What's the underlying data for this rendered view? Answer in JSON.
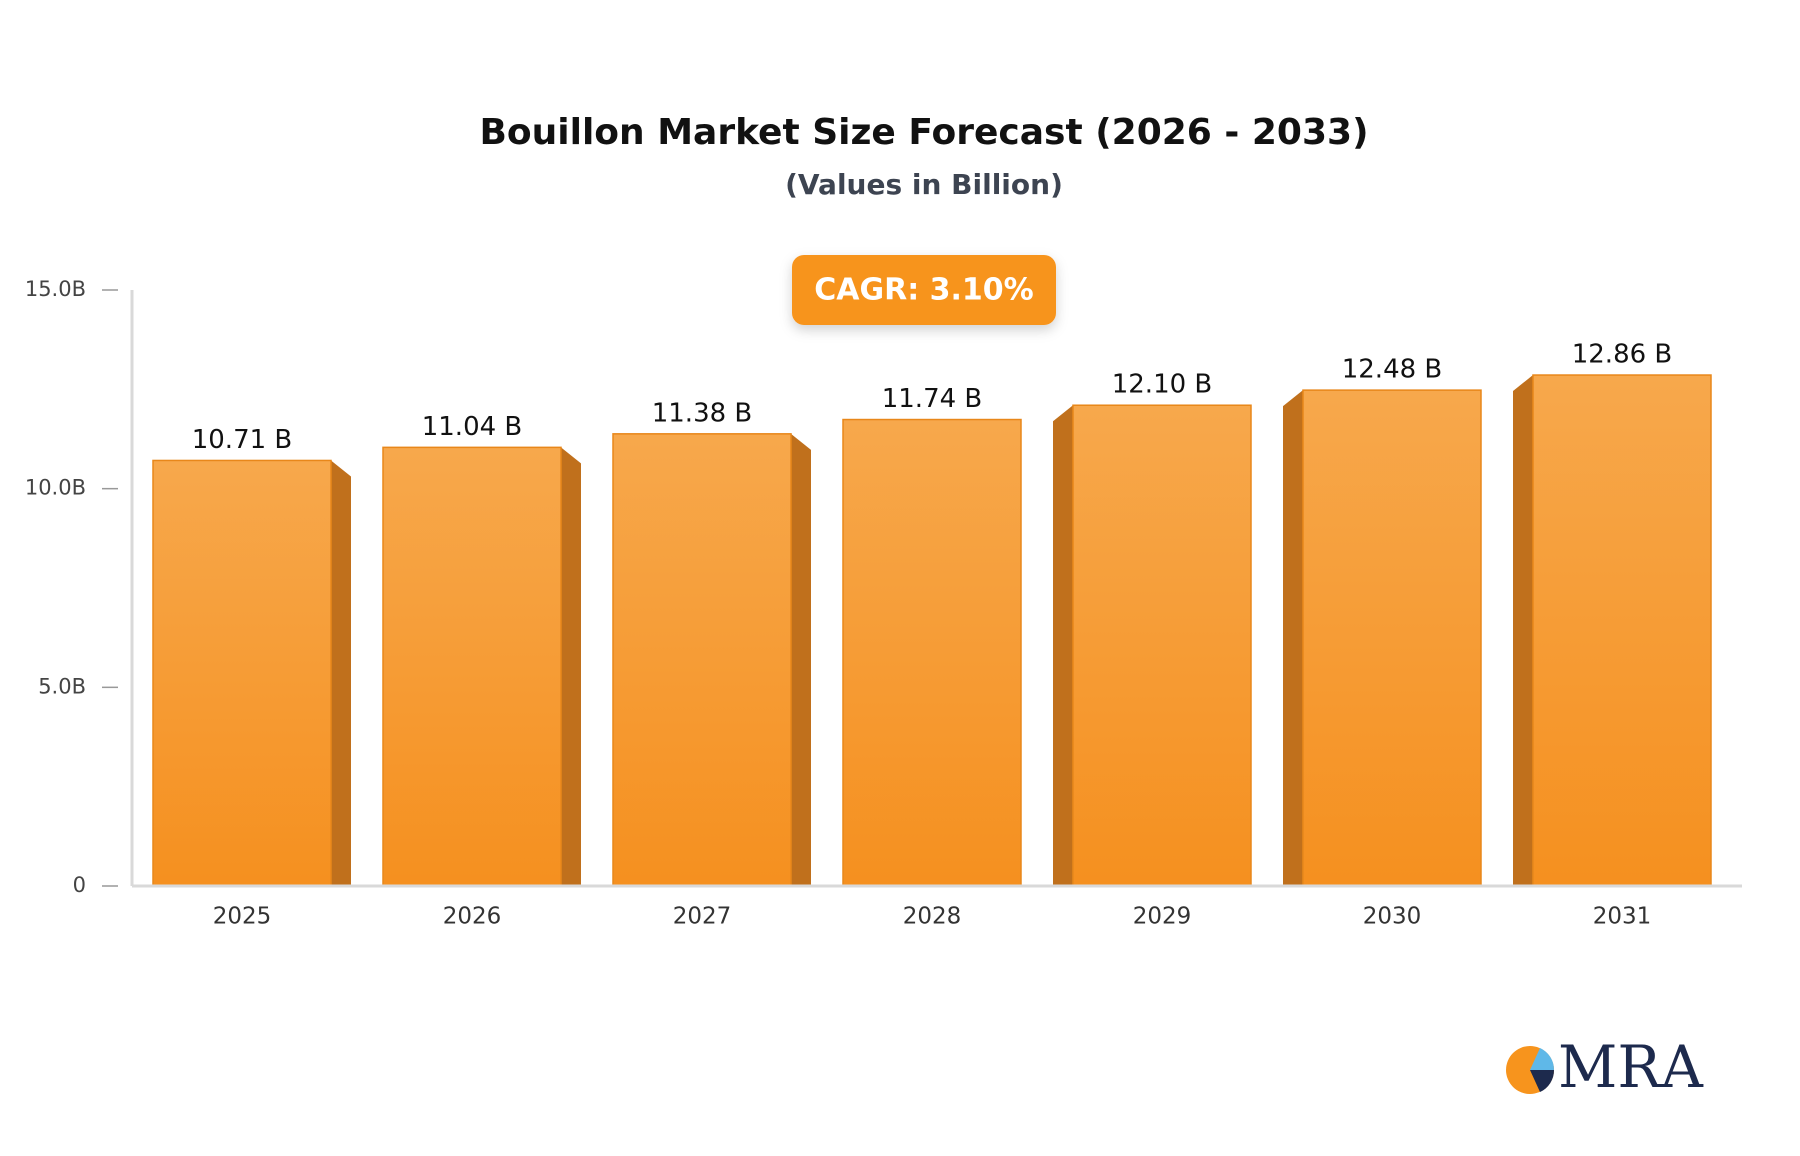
{
  "chart_data": {
    "type": "bar",
    "title": "Bouillon Market Size Forecast (2026 - 2033)",
    "subtitle": "(Values in Billion)",
    "annotation": "CAGR: 3.10%",
    "categories": [
      "2025",
      "2026",
      "2027",
      "2028",
      "2029",
      "2030",
      "2031"
    ],
    "values": [
      10.71,
      11.04,
      11.38,
      11.74,
      12.1,
      12.48,
      12.86
    ],
    "value_labels": [
      "10.71 B",
      "11.04 B",
      "11.38 B",
      "11.74 B",
      "12.10 B",
      "12.48 B",
      "12.86 B"
    ],
    "color": "#f7941d",
    "ylim": [
      0,
      15
    ],
    "yticks": [
      0,
      {
        "value": 5,
        "label": "5.0B"
      },
      {
        "value": 10,
        "label": "10.0B"
      },
      {
        "value": 15,
        "label": "15.0B"
      }
    ]
  },
  "logo": "MRA"
}
